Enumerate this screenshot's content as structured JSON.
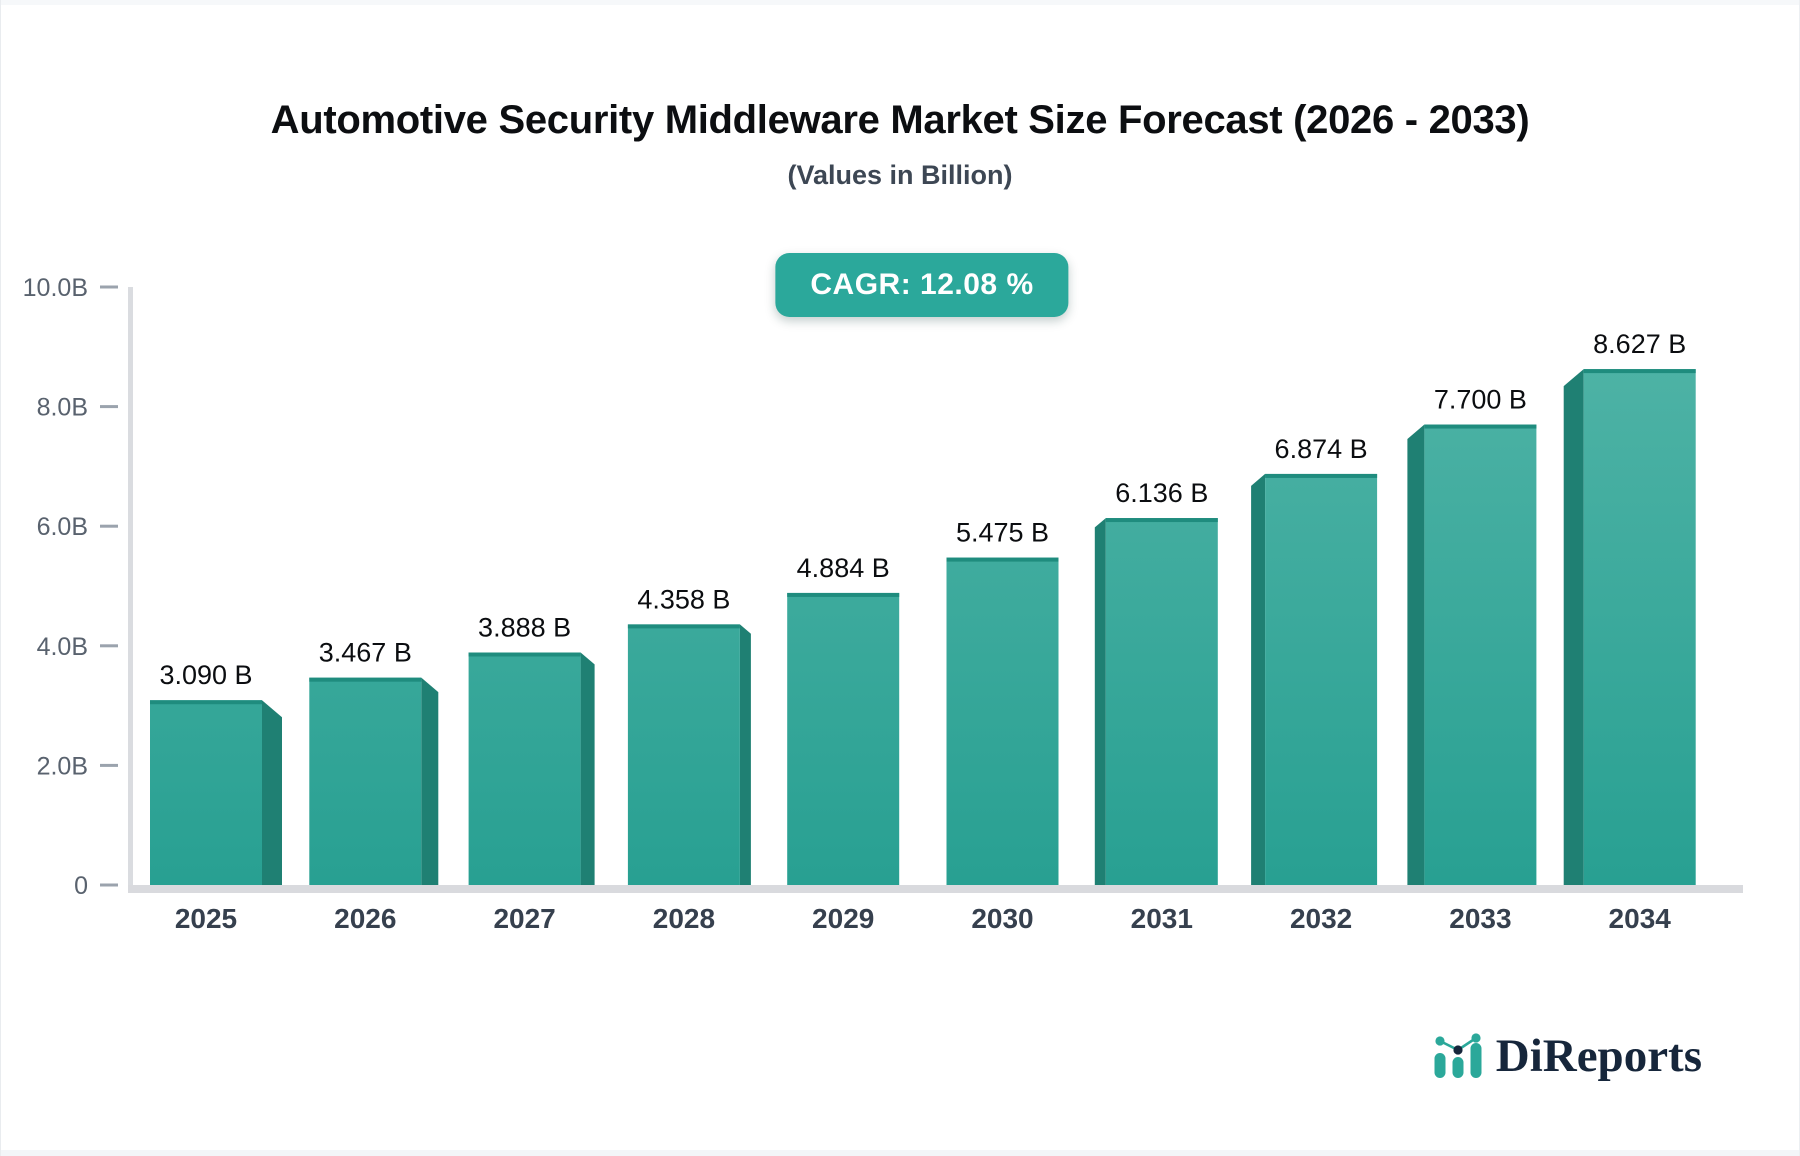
{
  "page": {
    "title": "Automotive Security Middleware Market Size Forecast (2026 - 2033)",
    "subtitle": "(Values in Billion)"
  },
  "badge": {
    "text": "CAGR: 12.08 %",
    "bg_color": "#2ba89b",
    "text_color": "#ffffff"
  },
  "chart_data": {
    "type": "bar",
    "title": "Automotive Security Middleware Market Size Forecast (2026 - 2033)",
    "subtitle": "(Values in Billion)",
    "cagr_percent": "12.08 %",
    "categories": [
      "2025",
      "2026",
      "2027",
      "2028",
      "2029",
      "2030",
      "2031",
      "2032",
      "2033",
      "2034"
    ],
    "values": [
      3.09,
      3.467,
      3.888,
      4.358,
      4.884,
      5.475,
      6.136,
      6.874,
      7.7,
      8.627
    ],
    "value_labels": [
      "3.090 B",
      "3.467 B",
      "3.888 B",
      "4.358 B",
      "4.884 B",
      "5.475 B",
      "6.136 B",
      "6.874 B",
      "7.700 B",
      "8.627 B"
    ],
    "xlabel": "",
    "ylabel": "",
    "ylim": [
      0,
      10
    ],
    "yticks": {
      "values": [
        0,
        2,
        4,
        6,
        8,
        10
      ],
      "labels": [
        "0",
        "2.0B",
        "4.0B",
        "6.0B",
        "8.0B",
        "10.0B"
      ]
    },
    "grid": false,
    "legend": false,
    "bar_style_3d": true,
    "colors": {
      "bar_face_top": "#53b5a8",
      "bar_face_bottom": "#28a092",
      "bar_side": "#1f8073",
      "bar_top_edge": "#1f8c7e",
      "axis_line": "#dadce0",
      "baseline": "#d9dade",
      "tick": "#9ba3ad",
      "y_label": "#59626e",
      "x_label": "#36404e",
      "value_label": "#0b0d10"
    }
  },
  "footer": {
    "brand": "DiReports",
    "logo_icon": "mini-bar-chart-icon",
    "brand_color": "#16263b",
    "icon_color": "#2ba89a",
    "icon_dot_color": "#16263b"
  }
}
